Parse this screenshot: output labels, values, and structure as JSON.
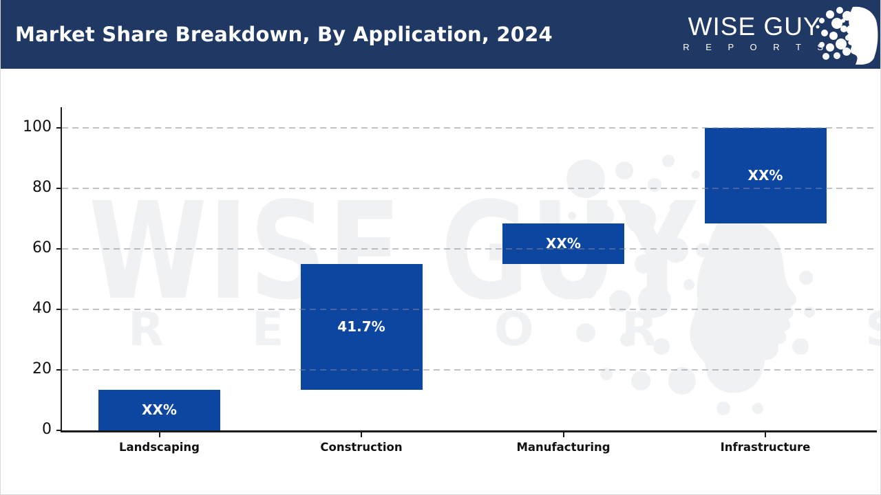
{
  "header": {
    "title": "Market Share Breakdown, By Application, 2024",
    "logo": {
      "line1": "WISE GUY",
      "line2": "R E P O R T S"
    },
    "background_color": "#1f3864"
  },
  "watermark": {
    "line1": "WISE GUY",
    "line2": "R E P O R T S"
  },
  "chart_data": {
    "type": "bar",
    "subtype": "waterfall",
    "title": "Market Share Breakdown, By Application, 2024",
    "categories": [
      "Landscaping",
      "Construction",
      "Manufacturing",
      "Infrastructure"
    ],
    "values": [
      13.3,
      41.7,
      13.3,
      31.7
    ],
    "cumulative_starts": [
      0,
      13.3,
      55,
      68.3
    ],
    "cumulative_ends": [
      13.3,
      55,
      68.3,
      100
    ],
    "bar_labels": [
      "XX%",
      "41.7%",
      "XX%",
      "XX%"
    ],
    "xlabel": "",
    "ylabel": "",
    "yticks": [
      0,
      20,
      40,
      60,
      80,
      100
    ],
    "ylim": [
      0,
      105
    ],
    "grid": "horizontal-dashed",
    "legend": "none",
    "bar_color": "#0d46a0",
    "axis_color": "#1a1a1a",
    "label_color": "#ffffff"
  }
}
